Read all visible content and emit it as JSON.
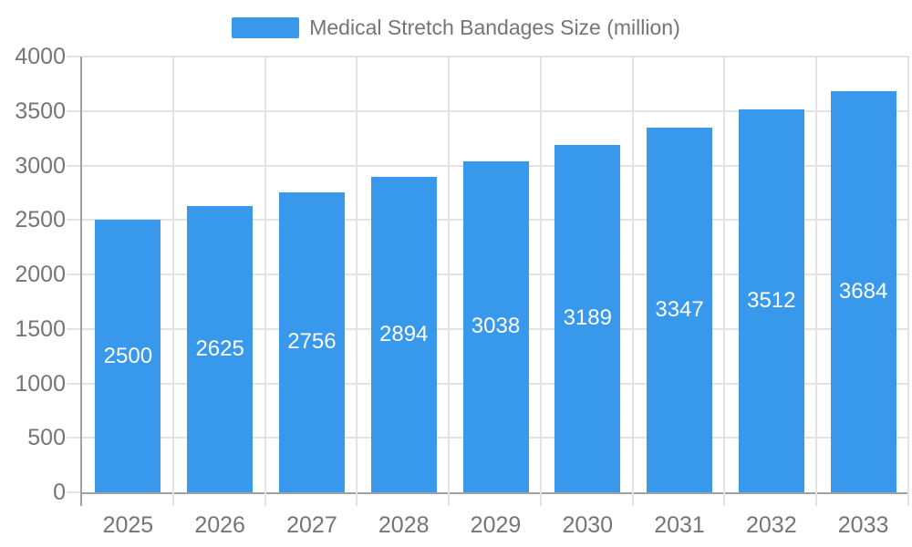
{
  "legend": {
    "label": "Medical Stretch Bandages Size (million)"
  },
  "colors": {
    "bar": "#3899EC",
    "axis": "#A1A1A1",
    "grid": "#E3E3E3",
    "text": "#757575",
    "bar_label": "#FFFFFF"
  },
  "chart_data": {
    "type": "bar",
    "title": "Medical Stretch Bandages Size (million)",
    "categories": [
      "2025",
      "2026",
      "2027",
      "2028",
      "2029",
      "2030",
      "2031",
      "2032",
      "2033"
    ],
    "values": [
      2500,
      2625,
      2756,
      2894,
      3038,
      3189,
      3347,
      3512,
      3684
    ],
    "xlabel": "",
    "ylabel": "",
    "ylim": [
      0,
      4000
    ],
    "ytick_step": 500,
    "grid": true,
    "legend_position": "top",
    "bar_label_position": "center"
  }
}
